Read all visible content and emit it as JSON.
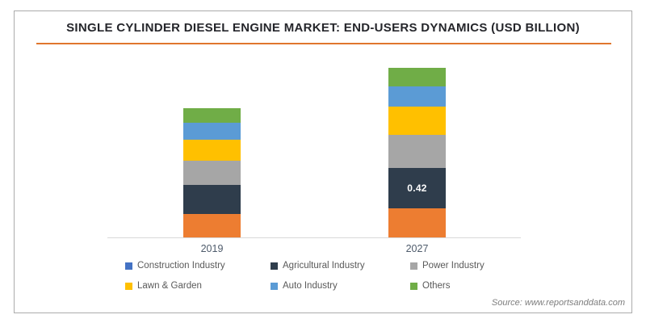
{
  "page": {
    "title": "SINGLE CYLINDER DIESEL ENGINE MARKET: END-USERS DYNAMICS (USD BILLION)",
    "source": "Source: www.reportsanddata.com"
  },
  "colors": {
    "title_underline": "#e0762e",
    "frame_border": "#ababab",
    "axis_line": "#d9d9d9",
    "data_label_text": "#ffffff"
  },
  "chart_data": {
    "type": "bar",
    "stacked": true,
    "title": "SINGLE CYLINDER DIESEL ENGINE MARKET: END-USERS DYNAMICS (USD BILLION)",
    "unit": "USD Billion",
    "categories": [
      "2019",
      "2027"
    ],
    "series": [
      {
        "name": "Construction Industry",
        "legend_color": "#4472c4",
        "bar_color": "#ed7d31",
        "values": [
          0.24,
          0.3
        ]
      },
      {
        "name": "Agricultural Industry",
        "legend_color": "#2f3d4c",
        "bar_color": "#2f3d4c",
        "values": [
          0.3,
          0.42
        ]
      },
      {
        "name": "Power Industry",
        "legend_color": "#a6a6a6",
        "bar_color": "#a6a6a6",
        "values": [
          0.25,
          0.34
        ]
      },
      {
        "name": "Lawn & Garden",
        "legend_color": "#ffc000",
        "bar_color": "#ffc000",
        "values": [
          0.22,
          0.29
        ]
      },
      {
        "name": "Auto Industry",
        "legend_color": "#5b9bd5",
        "bar_color": "#5b9bd5",
        "values": [
          0.17,
          0.21
        ]
      },
      {
        "name": "Others",
        "legend_color": "#70ad47",
        "bar_color": "#70ad47",
        "values": [
          0.15,
          0.19
        ]
      }
    ],
    "data_labels": [
      {
        "category": "2027",
        "series": "Agricultural Industry",
        "text": "0.42"
      }
    ],
    "legend_position": "bottom",
    "axes": {
      "x_ticks": [
        "2019",
        "2027"
      ],
      "y_axis_visible": false,
      "baseline_visible": true
    }
  }
}
